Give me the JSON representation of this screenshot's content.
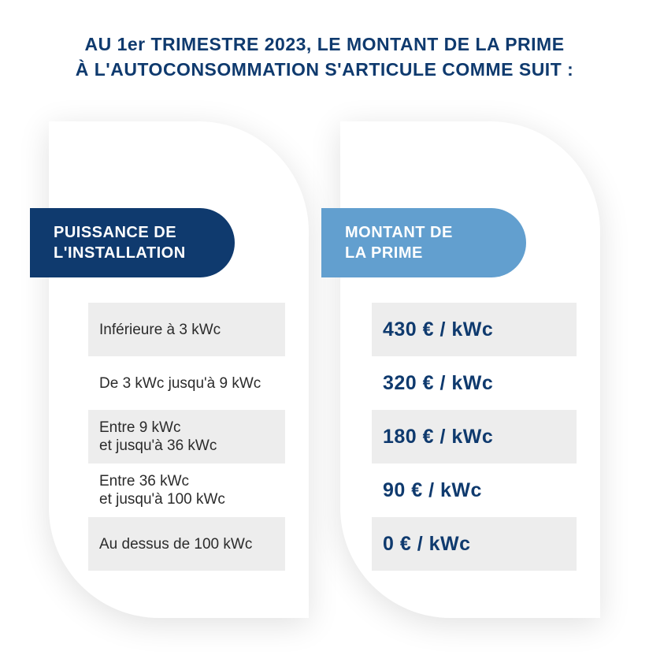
{
  "title_line1": "AU 1er TRIMESTRE 2023, LE MONTANT DE LA PRIME",
  "title_line2": "À L'AUTOCONSOMMATION S'ARTICULE COMME SUIT :",
  "colors": {
    "text_dark_blue": "#0f3a6e",
    "header_dark": "#0f3a6e",
    "header_light": "#629fcf",
    "row_alt_bg": "#ededed",
    "card_bg": "#ffffff",
    "body_text": "#2b2b2b"
  },
  "left_card": {
    "header_line1": "PUISSANCE DE",
    "header_line2": "L'INSTALLATION",
    "header_bg": "#0f3a6e",
    "rows": [
      {
        "text": "Inférieure à 3 kWc",
        "alt": true
      },
      {
        "text": "De 3 kWc jusqu'à 9 kWc",
        "alt": false
      },
      {
        "text": "Entre 9 kWc\net jusqu'à 36 kWc",
        "alt": true
      },
      {
        "text": "Entre 36 kWc\net jusqu'à 100 kWc",
        "alt": false
      },
      {
        "text": "Au dessus de 100 kWc",
        "alt": true
      }
    ]
  },
  "right_card": {
    "header_line1": "MONTANT DE",
    "header_line2": "LA PRIME",
    "header_bg": "#629fcf",
    "rows": [
      {
        "text": "430 € / kWc",
        "alt": true
      },
      {
        "text": "320 € / kWc",
        "alt": false
      },
      {
        "text": "180 € / kWc",
        "alt": true
      },
      {
        "text": "90 € / kWc",
        "alt": false
      },
      {
        "text": "0 € / kWc",
        "alt": true
      }
    ]
  }
}
